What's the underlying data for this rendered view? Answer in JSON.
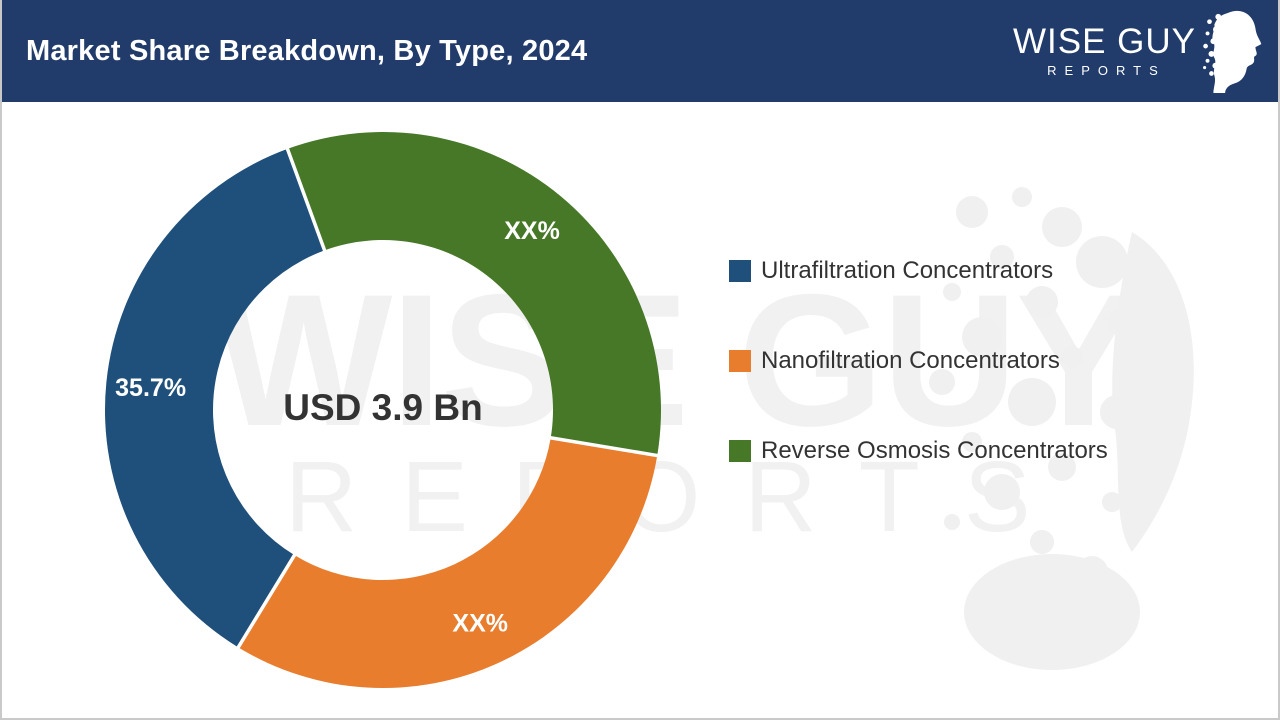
{
  "header": {
    "title": "Market Share Breakdown, By Type, 2024",
    "logo": {
      "line1": "WISE GUY",
      "line2": "REPORTS"
    }
  },
  "watermark": {
    "line1": "WISE GUY",
    "line2": "REPORTS"
  },
  "chart_data": {
    "type": "pie",
    "subtype": "donut",
    "title": "Market Share Breakdown, By Type, 2024",
    "center_label": "USD 3.9 Bn",
    "start_angle_deg": -20.1,
    "legend_position": "right",
    "segments": [
      {
        "id": "reverse-osmosis-concentrators",
        "label": "Reverse Osmosis Concentrators",
        "value": 33.2,
        "display": "XX%",
        "color": "#467828"
      },
      {
        "id": "nanofiltration-concentrators",
        "label": "Nanofiltration Concentrators",
        "value": 31.1,
        "display": "XX%",
        "color": "#e87d2e"
      },
      {
        "id": "ultrafiltration-concentrators",
        "label": "Ultrafiltration Concentrators",
        "value": 35.7,
        "display": "35.7%",
        "color": "#1f4f7b"
      }
    ],
    "legend": [
      {
        "label": "Ultrafiltration Concentrators",
        "color": "#1f4f7b"
      },
      {
        "label": "Nanofiltration Concentrators",
        "color": "#e87d2e"
      },
      {
        "label": "Reverse Osmosis Concentrators",
        "color": "#467828"
      }
    ]
  }
}
